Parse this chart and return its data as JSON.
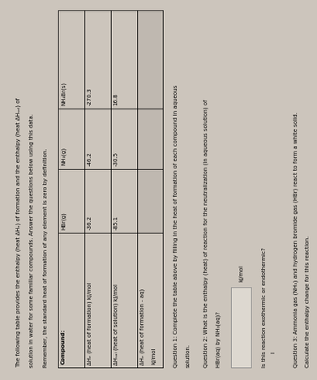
{
  "bg_color": "#ccc5bc",
  "title_lines": [
    "The following table provides the enthalpy (heat ΔHₑ) of formation and the enthalpy (heat ΔHₛₒₗ) of",
    "solution in water for some familiar compounds. Answer the questions below using this data.",
    "Remember, the standard heat of formation of any element is zero by definition."
  ],
  "table_header": [
    "Compound:",
    "HBr(g)",
    "NH₃(g)",
    "NH₄Br(s)"
  ],
  "row1_label": "ΔHₑ (heat of formation) kJ/mol",
  "row1_values": [
    "-36.2",
    "-46.2",
    "-270.3"
  ],
  "row2_label": "ΔHₛₒₗ (heat of solution) kJ/mol",
  "row2_values": [
    "-85.1",
    "-30.5",
    "16.8"
  ],
  "row3_label_line1": "ΔHₑ (heat of formation - aq)",
  "row3_label_line2": "kJ/mol",
  "q1_line1": "Question 1: Complete the table above by filling in the heat of formation of each compound in aqueous",
  "q1_line2": "solution.",
  "q2_line1": "Question 2: What is the enthalpy (heat) of reaction for the neutralization (in aqueous solution) of",
  "q2_line2": "HBr(aq) by NH₃(aq)?",
  "answer_label": "kJ/mol",
  "q3_line": "Is this reaction exothermic or endothermic?",
  "q3_answer": "I",
  "q4_line1": "Question 3: Ammonia gas (NH₃) and hydrogen bromide gas (HBr) react to form a white solid.",
  "q4_line2": "Calculate the enthalpy change for this reaction."
}
